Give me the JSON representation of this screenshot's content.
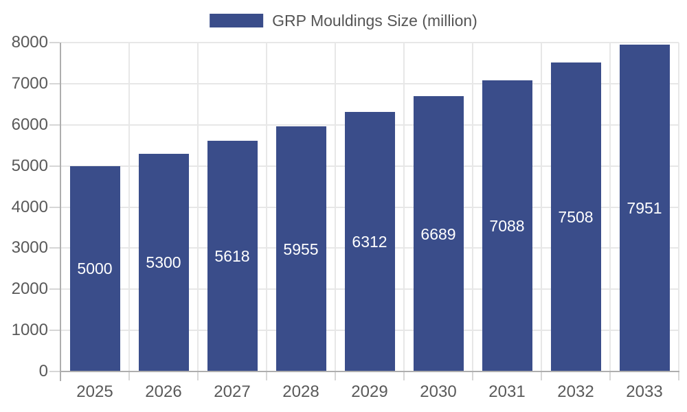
{
  "legend": {
    "label": "GRP Mouldings Size (million)"
  },
  "chart_data": {
    "type": "bar",
    "title": "",
    "xlabel": "",
    "ylabel": "",
    "legend_position": "top-center",
    "grid": true,
    "bar_labels_inside": true,
    "categories": [
      "2025",
      "2026",
      "2027",
      "2028",
      "2029",
      "2030",
      "2031",
      "2032",
      "2033"
    ],
    "series": [
      {
        "name": "GRP Mouldings Size (million)",
        "values": [
          5000,
          5300,
          5618,
          5955,
          6312,
          6689,
          7088,
          7508,
          7951
        ]
      }
    ],
    "ylim": [
      0,
      8000
    ],
    "ytick_step": 1000,
    "yticks": [
      0,
      1000,
      2000,
      3000,
      4000,
      5000,
      6000,
      7000,
      8000
    ],
    "colors": {
      "bar": "#3A4D8A",
      "bar_label": "#FFFFFF",
      "axis_text": "#595959",
      "legend_text": "#555555",
      "axis_line": "#AEAEAE",
      "gridline": "#E7E7E7",
      "tick": "#D6D6D6",
      "background": "#FFFFFF"
    }
  }
}
